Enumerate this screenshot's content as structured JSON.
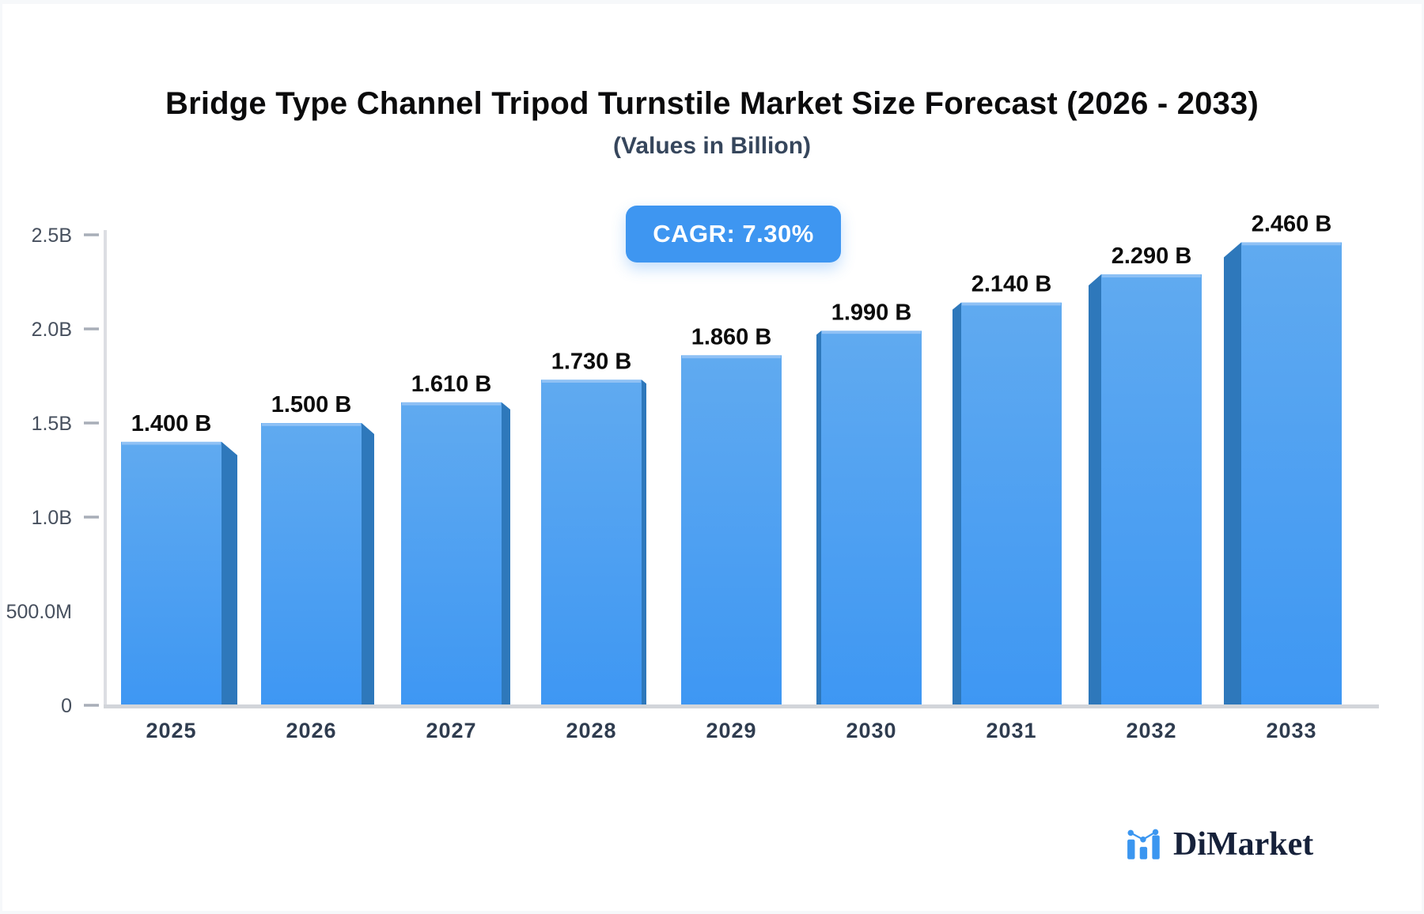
{
  "header": {
    "title": "Bridge Type Channel Tripod Turnstile Market Size Forecast (2026 - 2033)",
    "subtitle": "(Values in Billion)"
  },
  "badge": {
    "label": "CAGR: 7.30%",
    "background": "#3e96f1",
    "text_color": "#ffffff"
  },
  "chart_data": {
    "type": "bar",
    "title": "Bridge Type Channel Tripod Turnstile Market Size Forecast (2026 - 2033)",
    "subtitle": "(Values in Billion)",
    "unit": "Billion",
    "cagr_percent": 7.3,
    "categories": [
      "2025",
      "2026",
      "2027",
      "2028",
      "2029",
      "2030",
      "2031",
      "2032",
      "2033"
    ],
    "values": [
      1.4,
      1.5,
      1.61,
      1.73,
      1.86,
      1.99,
      2.14,
      2.29,
      2.46
    ],
    "value_labels": [
      "1.400 B",
      "1.500 B",
      "1.610 B",
      "1.730 B",
      "1.860 B",
      "1.990 B",
      "2.140 B",
      "2.290 B",
      "2.460 B"
    ],
    "ylim": [
      0,
      2.5
    ],
    "yticks": [
      {
        "label": "2.5B",
        "value": 2.5,
        "tick": true
      },
      {
        "label": "2.0B",
        "value": 2.0,
        "tick": true
      },
      {
        "label": "1.5B",
        "value": 1.5,
        "tick": true
      },
      {
        "label": "1.0B",
        "value": 1.0,
        "tick": true
      },
      {
        "label": "500.0M",
        "value": 0.5,
        "tick": false
      },
      {
        "label": "0",
        "value": 0.0,
        "tick": true
      }
    ],
    "grid": false,
    "legend": null,
    "colors": {
      "bar_face_top": "#60aaf0",
      "bar_face_bottom": "#3e97f3",
      "bar_top_highlight": "#8fc1f5",
      "bar_side": "#2e78bb",
      "axis_line": "#dcdee3",
      "baseline": "#d2d5da",
      "tick_dash": "#a8aeb8",
      "tick_label": "#47505e",
      "value_label": "#0c0c0c",
      "category_label": "#2f3c4f"
    }
  },
  "footer": {
    "logo_text": "DiMarket",
    "logo_text_color": "#16213a",
    "logo_icon_color": "#3b96f0"
  }
}
